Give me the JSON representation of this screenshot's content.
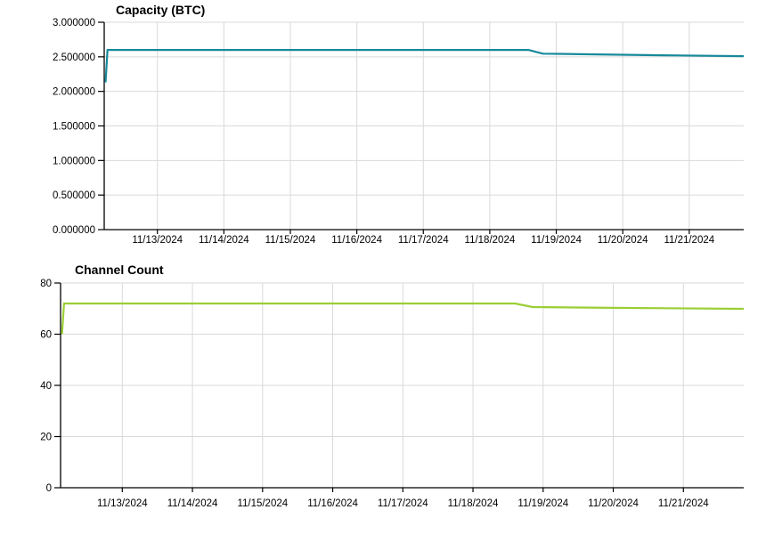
{
  "page": {
    "background": "#ffffff"
  },
  "chart_data": [
    {
      "type": "line",
      "title": "Capacity (BTC)",
      "xlabel": "",
      "ylabel": "",
      "legend": "none",
      "grid": "on",
      "line_color": "#17899b",
      "grid_color": "#d9d9d9",
      "axis_color": "#000000",
      "tick_label_color": "#000000",
      "x_domain": [
        -0.8,
        8.82
      ],
      "ylim": [
        0,
        3
      ],
      "x_ticks": [
        {
          "v": 0,
          "label": "11/13/2024"
        },
        {
          "v": 1,
          "label": "11/14/2024"
        },
        {
          "v": 2,
          "label": "11/15/2024"
        },
        {
          "v": 3,
          "label": "11/16/2024"
        },
        {
          "v": 4,
          "label": "11/17/2024"
        },
        {
          "v": 5,
          "label": "11/18/2024"
        },
        {
          "v": 6,
          "label": "11/19/2024"
        },
        {
          "v": 7,
          "label": "11/20/2024"
        },
        {
          "v": 8,
          "label": "11/21/2024"
        }
      ],
      "y_ticks": [
        {
          "v": 0.0,
          "label": "0.000000"
        },
        {
          "v": 0.5,
          "label": "0.500000"
        },
        {
          "v": 1.0,
          "label": "1.000000"
        },
        {
          "v": 1.5,
          "label": "1.500000"
        },
        {
          "v": 2.0,
          "label": "2.000000"
        },
        {
          "v": 2.5,
          "label": "2.500000"
        },
        {
          "v": 3.0,
          "label": "3.000000"
        }
      ],
      "series": [
        {
          "name": "Capacity (BTC)",
          "points": [
            [
              -0.78,
              2.13
            ],
            [
              -0.75,
              2.6
            ],
            [
              5.58,
              2.6
            ],
            [
              5.8,
              2.545
            ],
            [
              6.6,
              2.535
            ],
            [
              7.6,
              2.522
            ],
            [
              8.82,
              2.51
            ]
          ]
        }
      ]
    },
    {
      "type": "line",
      "title": "Channel Count",
      "xlabel": "",
      "ylabel": "",
      "legend": "none",
      "grid": "on",
      "line_color": "#9bce35",
      "grid_color": "#d9d9d9",
      "axis_color": "#000000",
      "tick_label_color": "#000000",
      "x_domain": [
        -0.88,
        8.86
      ],
      "ylim": [
        0,
        80
      ],
      "x_ticks": [
        {
          "v": 0,
          "label": "11/13/2024"
        },
        {
          "v": 1,
          "label": "11/14/2024"
        },
        {
          "v": 2,
          "label": "11/15/2024"
        },
        {
          "v": 3,
          "label": "11/16/2024"
        },
        {
          "v": 4,
          "label": "11/17/2024"
        },
        {
          "v": 5,
          "label": "11/18/2024"
        },
        {
          "v": 6,
          "label": "11/19/2024"
        },
        {
          "v": 7,
          "label": "11/20/2024"
        },
        {
          "v": 8,
          "label": "11/21/2024"
        }
      ],
      "y_ticks": [
        {
          "v": 0,
          "label": "0"
        },
        {
          "v": 20,
          "label": "20"
        },
        {
          "v": 40,
          "label": "40"
        },
        {
          "v": 60,
          "label": "60"
        },
        {
          "v": 80,
          "label": "80"
        }
      ],
      "series": [
        {
          "name": "Channel Count",
          "points": [
            [
              -0.86,
              60
            ],
            [
              -0.83,
              72
            ],
            [
              5.6,
              72
            ],
            [
              5.85,
              70.6
            ],
            [
              7.0,
              70.3
            ],
            [
              8.86,
              69.9
            ]
          ]
        }
      ]
    }
  ]
}
